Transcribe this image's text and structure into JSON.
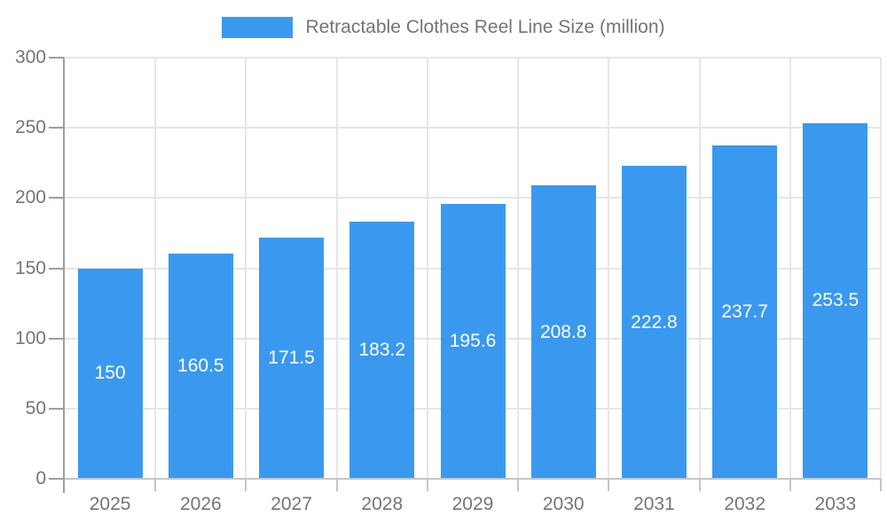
{
  "legend": {
    "label": "Retractable Clothes Reel Line Size (million)"
  },
  "chart_data": {
    "type": "bar",
    "title": "Retractable Clothes Reel Line Size (million)",
    "categories": [
      "2025",
      "2026",
      "2027",
      "2028",
      "2029",
      "2030",
      "2031",
      "2032",
      "2033"
    ],
    "values": [
      150,
      160.5,
      171.5,
      183.2,
      195.6,
      208.8,
      222.8,
      237.7,
      253.5
    ],
    "value_labels": [
      "150",
      "160.5",
      "171.5",
      "183.2",
      "195.6",
      "208.8",
      "222.8",
      "237.7",
      "253.5"
    ],
    "xlabel": "",
    "ylabel": "",
    "ylim": [
      0,
      300
    ],
    "yticks": [
      0,
      50,
      100,
      150,
      200,
      250,
      300
    ],
    "grid": true,
    "legend_position": "top center",
    "value_label_position": "center of bar",
    "colors": {
      "bar": "#3a99ee",
      "label_text": "#757575",
      "value_text": "#ffffff",
      "gridline": "#e6e6e6",
      "axis_line": "#9e9e9e",
      "baseline": "#c6c6c6",
      "background": "#ffffff"
    }
  }
}
